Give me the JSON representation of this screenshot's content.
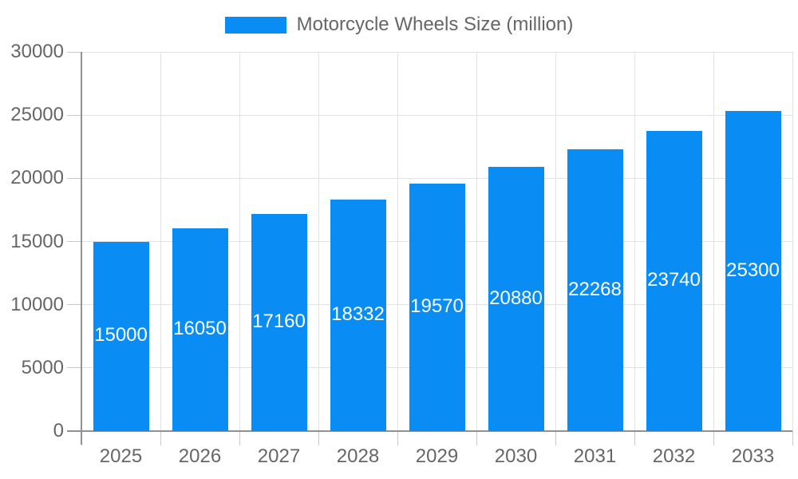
{
  "chart_data": {
    "type": "bar",
    "title": "Motorcycle Wheels Size (million)",
    "categories": [
      "2025",
      "2026",
      "2027",
      "2028",
      "2029",
      "2030",
      "2031",
      "2032",
      "2033"
    ],
    "values": [
      15000,
      16050,
      17160,
      18332,
      19570,
      20880,
      22268,
      23740,
      25300
    ],
    "xlabel": "",
    "ylabel": "",
    "ylim": [
      0,
      30000
    ],
    "yticks": [
      0,
      5000,
      10000,
      15000,
      20000,
      25000,
      30000
    ],
    "grid": true,
    "legend_position": "top",
    "bar_labels_inside": true,
    "colors": {
      "bar": "#0a8cf5",
      "bar_label": "#ffffff",
      "axis_text": "#666666",
      "grid_line": "#e2e2e2",
      "tick_line": "#c8c8c8",
      "axis_line": "#919191",
      "background": "#ffffff"
    }
  }
}
